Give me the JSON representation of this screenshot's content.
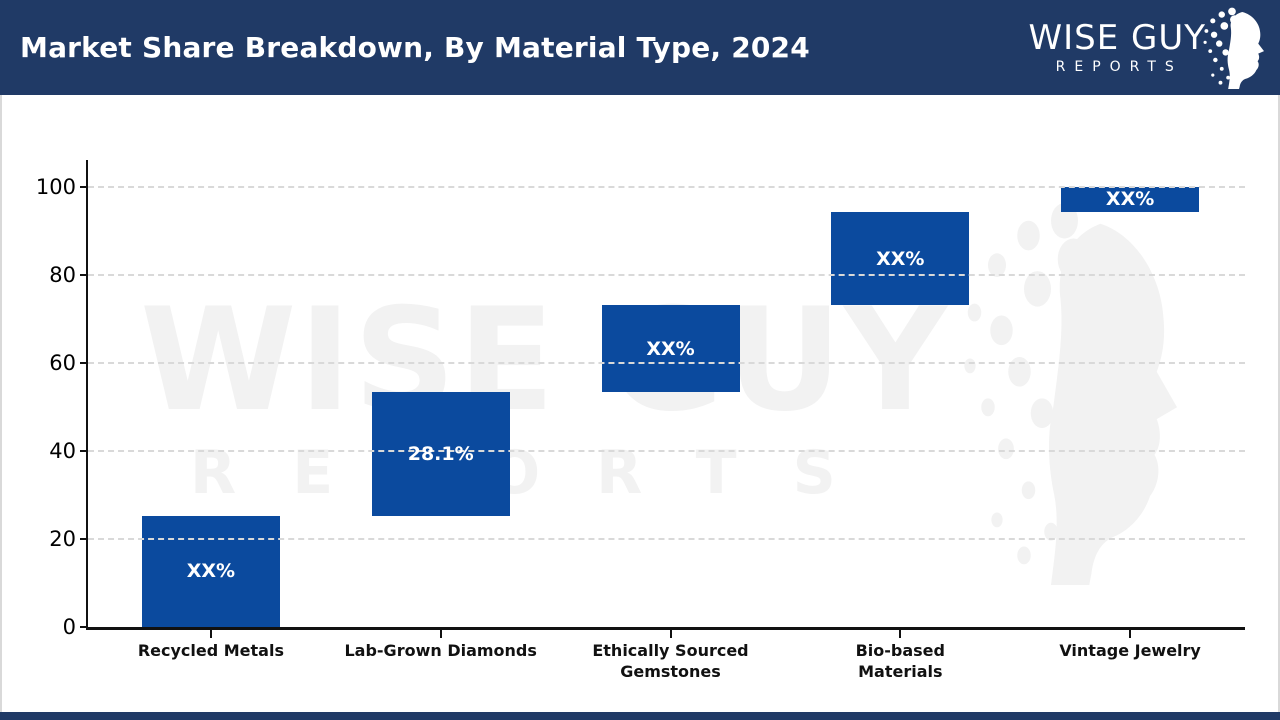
{
  "header": {
    "title": "Market Share Breakdown, By Material Type, 2024",
    "logo_line1": "WISE GUY",
    "logo_line2": "REPORTS"
  },
  "watermark": {
    "line1": "WISE GUY",
    "line2": "REPORTS"
  },
  "chart_data": {
    "type": "bar",
    "subtype": "waterfall",
    "title": "Market Share Breakdown, By Material Type, 2024",
    "categories": [
      "Recycled Metals",
      "Lab-Grown Diamonds",
      "Ethically Sourced\nGemstones",
      "Bio-based\nMaterials",
      "Vintage Jewelry"
    ],
    "segments": [
      {
        "category": "Recycled Metals",
        "start": 0,
        "end": 25.2,
        "value": 25.2,
        "label": "XX%"
      },
      {
        "category": "Lab-Grown Diamonds",
        "start": 25.3,
        "end": 53.4,
        "value": 28.1,
        "label": "28.1%"
      },
      {
        "category": "Ethically Sourced Gemstones",
        "start": 53.4,
        "end": 73.0,
        "value": 19.6,
        "label": "XX%"
      },
      {
        "category": "Bio-based Materials",
        "start": 73.0,
        "end": 94.1,
        "value": 21.1,
        "label": "XX%"
      },
      {
        "category": "Vintage Jewelry",
        "start": 94.1,
        "end": 100.0,
        "value": 5.9,
        "label": "XX%"
      }
    ],
    "yticks": [
      0,
      20,
      40,
      60,
      80,
      100
    ],
    "ylim": [
      0,
      106
    ],
    "xlabel": "",
    "ylabel": "",
    "grid": "horizontal-dashed-above-bars",
    "legend": "none",
    "bar_color": "#0b4a9e",
    "bar_label_color": "#ffffff"
  },
  "colors": {
    "header_bg": "#203a66",
    "footer_bg": "#203a66",
    "bar": "#0b4a9e",
    "axis": "#111111",
    "gridline": "#d9d9d9",
    "watermark": "#f2f2f2",
    "title_text": "#ffffff"
  }
}
